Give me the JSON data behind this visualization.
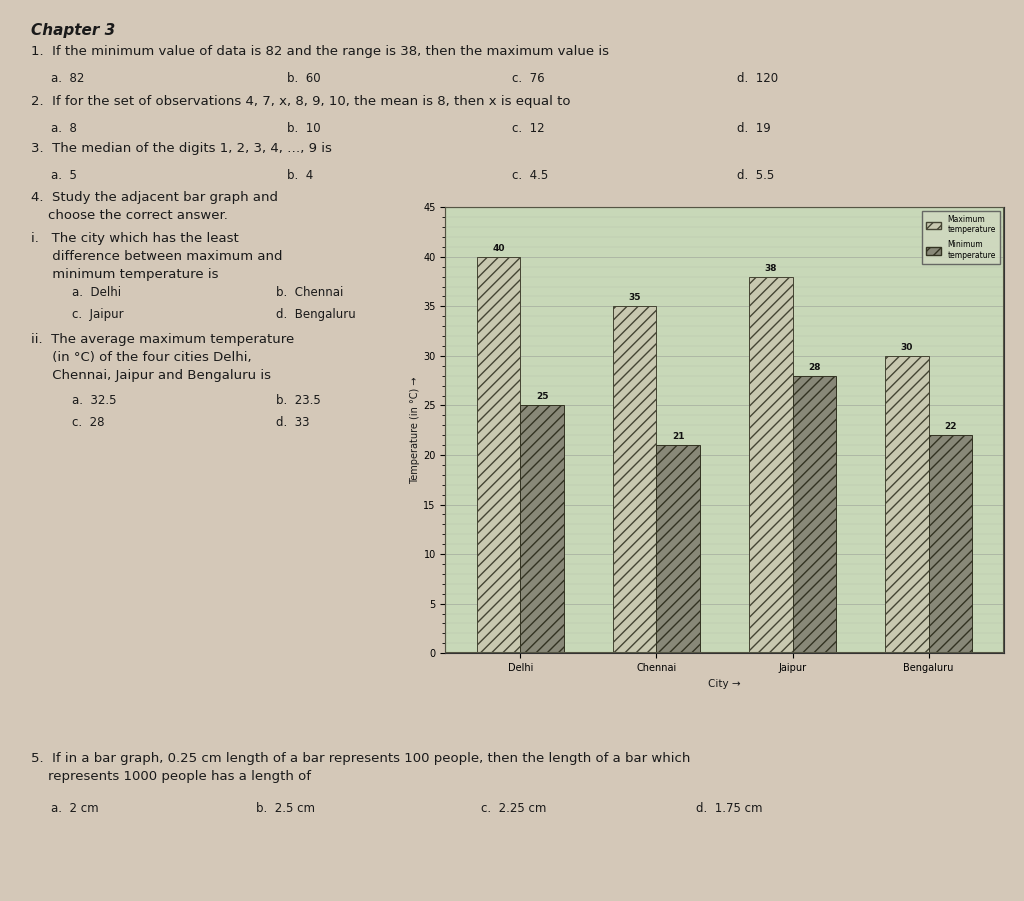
{
  "page_bg": "#d4c8b8",
  "cities": [
    "Delhi",
    "Chennai",
    "Jaipur",
    "Bengaluru"
  ],
  "max_temps": [
    40,
    35,
    38,
    30
  ],
  "min_temps": [
    25,
    21,
    28,
    22
  ],
  "ylim": [
    0,
    45
  ],
  "yticks": [
    0,
    5,
    10,
    15,
    20,
    25,
    30,
    35,
    40,
    45
  ],
  "bar_width": 0.32,
  "max_hatch": "///",
  "min_hatch": "///",
  "max_facecolor": "#c8c8b0",
  "min_facecolor": "#888878",
  "max_edgecolor": "#444433",
  "min_edgecolor": "#333322",
  "legend_max": "Maximum\ntemperature",
  "legend_min": "Minimum\ntemperature",
  "graph_bg": "#c8d8b8",
  "grid_color": "#888888",
  "xlabel": "City →",
  "ylabel": "Temperature (in °C) →",
  "chapter_text": "Chapter 3",
  "q1_text": "1.  If the minimum value of data is 82 and the range is 38, then the maximum value is",
  "q1_opts": [
    "a.  82",
    "b.  60",
    "c.  76",
    "d.  120"
  ],
  "q2_text": "2.  If for the set of observations 4, 7, x, 8, 9, 10, the mean is 8, then x is equal to",
  "q2_opts": [
    "a.  8",
    "b.  10",
    "c.  12",
    "d.  19"
  ],
  "q3_text": "3.  The median of the digits 1, 2, 3, 4, …, 9 is",
  "q3_opts": [
    "a.  5",
    "b.  4",
    "c.  4.5",
    "d.  5.5"
  ],
  "q4_text": "4.  Study the adjacent bar graph and\n    choose the correct answer.",
  "q4i_text": "i.   The city which has the least\n     difference between maximum and\n     minimum temperature is",
  "q4i_opts": [
    "a.  Delhi",
    "b.  Chennai",
    "c.  Jaipur",
    "d.  Bengaluru"
  ],
  "q4ii_text": "ii.  The average maximum temperature\n     (in °C) of the four cities Delhi,\n     Chennai, Jaipur and Bengaluru is",
  "q4ii_opts": [
    "a.  32.5",
    "b.  23.5",
    "c.  28",
    "d.  33"
  ],
  "q5_text": "5.  If in a bar graph, 0.25 cm length of a bar represents 100 people, then the length of a bar which\n    represents 1000 people has a length of",
  "q5_opts": [
    "a.  2 cm",
    "b.  2.5 cm",
    "c.  2.25 cm",
    "d.  1.75 cm"
  ]
}
